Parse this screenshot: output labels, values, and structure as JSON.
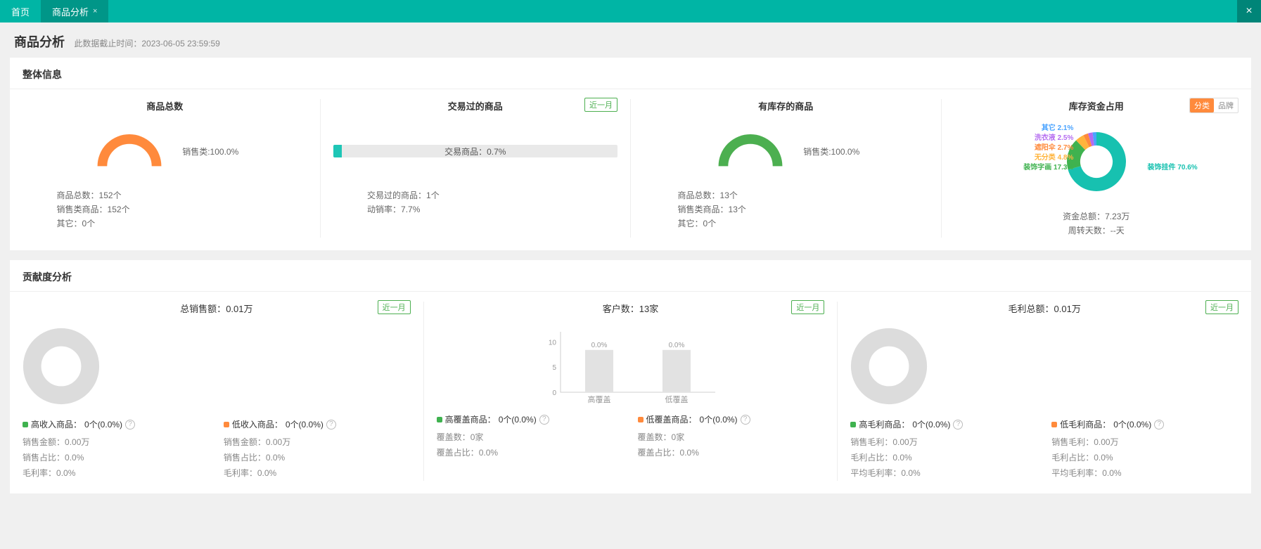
{
  "tabs": {
    "home": "首页",
    "active": "商品分析"
  },
  "page": {
    "title": "商品分析",
    "subtitle_prefix": "此数据截止时间：",
    "cutoff": "2023-06-05 23:59:59"
  },
  "overall": {
    "section_title": "整体信息",
    "total": {
      "title": "商品总数",
      "gauge": {
        "percent": 100,
        "color": "#ff8a3c",
        "track": "#e8e8e8"
      },
      "label": "销售类:100.0%",
      "rows": [
        {
          "k": "商品总数：",
          "v": "152个"
        },
        {
          "k": "销售类商品：",
          "v": "152个"
        },
        {
          "k": "其它：",
          "v": "0个"
        }
      ]
    },
    "traded": {
      "title": "交易过的商品",
      "badge": "近一月",
      "bar": {
        "percent": 3,
        "text": "交易商品：0.7%",
        "fill": "#1ec6b6",
        "track": "#e9e9e9"
      },
      "rows": [
        {
          "k": "交易过的商品：",
          "v": "1个"
        },
        {
          "k": "动销率：",
          "v": "7.7%"
        }
      ]
    },
    "instock": {
      "title": "有库存的商品",
      "gauge": {
        "percent": 100,
        "color": "#4caf50",
        "track": "#e8e8e8"
      },
      "label": "销售类:100.0%",
      "rows": [
        {
          "k": "商品总数：",
          "v": "13个"
        },
        {
          "k": "销售类商品：",
          "v": "13个"
        },
        {
          "k": "其它：",
          "v": "0个"
        }
      ]
    },
    "capital": {
      "title": "库存资金占用",
      "seg": {
        "a": "分类",
        "b": "品牌"
      },
      "pie": {
        "slices": [
          {
            "name": "装饰挂件",
            "pct": 70.6,
            "color": "#17c1b0"
          },
          {
            "name": "装饰字画",
            "pct": 17.3,
            "color": "#3fb24f"
          },
          {
            "name": "无分类",
            "pct": 4.8,
            "color": "#ffb43c"
          },
          {
            "name": "遮阳伞",
            "pct": 2.7,
            "color": "#ff8a3c"
          },
          {
            "name": "洗衣液",
            "pct": 2.5,
            "color": "#b46cf0"
          },
          {
            "name": "其它",
            "pct": 2.1,
            "color": "#4aa3ff"
          }
        ],
        "inner_ratio": 0.55,
        "label_colors": {
          "装饰挂件": "#17c1b0",
          "装饰字画": "#3fb24f",
          "无分类": "#ffb43c",
          "遮阳伞": "#ff8a3c",
          "洗衣液": "#b46cf0",
          "其它": "#4aa3ff"
        }
      },
      "rows": [
        {
          "k": "资金总额：",
          "v": "7.23万"
        },
        {
          "k": "周转天数：",
          "v": "--天"
        }
      ]
    }
  },
  "contrib": {
    "section_title": "贡献度分析",
    "badge": "近一月",
    "sales": {
      "title_k": "总销售额：",
      "title_v": "0.01万",
      "left": {
        "head": "高收入商品：",
        "val": "0个(0.0%)",
        "dot": "#3fb24f",
        "rows": [
          {
            "k": "销售金额：",
            "v": "0.00万"
          },
          {
            "k": "销售占比：",
            "v": "0.0%"
          },
          {
            "k": "毛利率：",
            "v": "0.0%"
          }
        ]
      },
      "right": {
        "head": "低收入商品：",
        "val": "0个(0.0%)",
        "dot": "#ff8a3c",
        "rows": [
          {
            "k": "销售金额：",
            "v": "0.00万"
          },
          {
            "k": "销售占比：",
            "v": "0.0%"
          },
          {
            "k": "毛利率：",
            "v": "0.0%"
          }
        ]
      }
    },
    "customers": {
      "title_k": "客户数：",
      "title_v": "13家",
      "chart": {
        "type": "bar",
        "categories": [
          "高覆盖",
          "低覆盖"
        ],
        "values": [
          0,
          0
        ],
        "value_labels": [
          "0.0%",
          "0.0%"
        ],
        "yticks": [
          0,
          5,
          10
        ],
        "ylim": [
          0,
          12
        ],
        "bar_color": "#e2e2e2",
        "axis_color": "#cfcfcf",
        "text_color": "#999"
      },
      "left": {
        "head": "高覆盖商品：",
        "val": "0个(0.0%)",
        "dot": "#3fb24f",
        "rows": [
          {
            "k": "覆盖数：",
            "v": "0家"
          },
          {
            "k": "覆盖占比：",
            "v": "0.0%"
          }
        ]
      },
      "right": {
        "head": "低覆盖商品：",
        "val": "0个(0.0%)",
        "dot": "#ff8a3c",
        "rows": [
          {
            "k": "覆盖数：",
            "v": "0家"
          },
          {
            "k": "覆盖占比：",
            "v": "0.0%"
          }
        ]
      }
    },
    "profit": {
      "title_k": "毛利总额：",
      "title_v": "0.01万",
      "left": {
        "head": "高毛利商品：",
        "val": "0个(0.0%)",
        "dot": "#3fb24f",
        "rows": [
          {
            "k": "销售毛利：",
            "v": "0.00万"
          },
          {
            "k": "毛利占比：",
            "v": "0.0%"
          },
          {
            "k": "平均毛利率：",
            "v": "0.0%"
          }
        ]
      },
      "right": {
        "head": "低毛利商品：",
        "val": "0个(0.0%)",
        "dot": "#ff8a3c",
        "rows": [
          {
            "k": "销售毛利：",
            "v": "0.00万"
          },
          {
            "k": "毛利占比：",
            "v": "0.0%"
          },
          {
            "k": "平均毛利率：",
            "v": "0.0%"
          }
        ]
      }
    }
  },
  "colors": {
    "empty_donut": "#dcdcdc"
  }
}
